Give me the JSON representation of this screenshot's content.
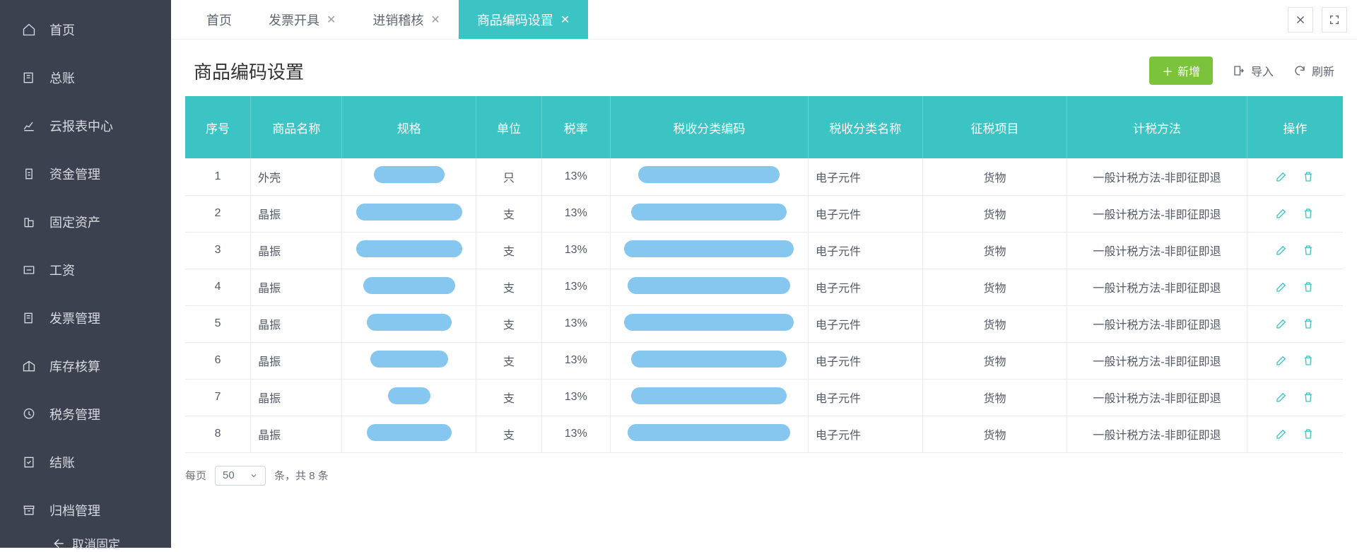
{
  "colors": {
    "sidebar_bg": "#3c4150",
    "sidebar_fg": "#d8dadf",
    "accent": "#3cc4c4",
    "primary_btn": "#7ac33a",
    "redact": "#85c7ee",
    "border": "#e8ebef",
    "text": "#333333"
  },
  "sidebar": {
    "items": [
      {
        "label": "首页",
        "ico": "home"
      },
      {
        "label": "总账",
        "ico": "ledger"
      },
      {
        "label": "云报表中心",
        "ico": "chart"
      },
      {
        "label": "资金管理",
        "ico": "money"
      },
      {
        "label": "固定资产",
        "ico": "building"
      },
      {
        "label": "工资",
        "ico": "salary"
      },
      {
        "label": "发票管理",
        "ico": "invoice"
      },
      {
        "label": "库存核算",
        "ico": "stock"
      },
      {
        "label": "税务管理",
        "ico": "tax"
      },
      {
        "label": "结账",
        "ico": "close-period"
      },
      {
        "label": "归档管理",
        "ico": "archive"
      }
    ],
    "footer": "取消固定"
  },
  "tabs": [
    {
      "label": "首页",
      "closable": false,
      "active": false
    },
    {
      "label": "发票开具",
      "closable": true,
      "active": false
    },
    {
      "label": "进销稽核",
      "closable": true,
      "active": false
    },
    {
      "label": "商品编码设置",
      "closable": true,
      "active": true
    }
  ],
  "page": {
    "title": "商品编码设置",
    "add": "新增",
    "import": "导入",
    "refresh": "刷新"
  },
  "table": {
    "columns": [
      "序号",
      "商品名称",
      "规格",
      "单位",
      "税率",
      "税收分类编码",
      "税收分类名称",
      "征税项目",
      "计税方法",
      "操作"
    ],
    "rows": [
      {
        "seq": "1",
        "name": "外壳",
        "spec_redact_w": 100,
        "unit": "只",
        "rate": "13%",
        "code_redact_w": 200,
        "cls": "电子元件",
        "tax": "货物",
        "method": "一般计税方法-非即征即退"
      },
      {
        "seq": "2",
        "name": "晶振",
        "spec_redact_w": 150,
        "unit": "支",
        "rate": "13%",
        "code_redact_w": 220,
        "cls": "电子元件",
        "tax": "货物",
        "method": "一般计税方法-非即征即退"
      },
      {
        "seq": "3",
        "name": "晶振",
        "spec_redact_w": 150,
        "unit": "支",
        "rate": "13%",
        "code_redact_w": 240,
        "cls": "电子元件",
        "tax": "货物",
        "method": "一般计税方法-非即征即退"
      },
      {
        "seq": "4",
        "name": "晶振",
        "spec_redact_w": 130,
        "unit": "支",
        "rate": "13%",
        "code_redact_w": 230,
        "cls": "电子元件",
        "tax": "货物",
        "method": "一般计税方法-非即征即退"
      },
      {
        "seq": "5",
        "name": "晶振",
        "spec_redact_w": 120,
        "unit": "支",
        "rate": "13%",
        "code_redact_w": 240,
        "cls": "电子元件",
        "tax": "货物",
        "method": "一般计税方法-非即征即退"
      },
      {
        "seq": "6",
        "name": "晶振",
        "spec_redact_w": 110,
        "unit": "支",
        "rate": "13%",
        "code_redact_w": 220,
        "cls": "电子元件",
        "tax": "货物",
        "method": "一般计税方法-非即征即退"
      },
      {
        "seq": "7",
        "name": "晶振",
        "spec_redact_w": 60,
        "unit": "支",
        "rate": "13%",
        "code_redact_w": 220,
        "cls": "电子元件",
        "tax": "货物",
        "method": "一般计税方法-非即征即退"
      },
      {
        "seq": "8",
        "name": "晶振",
        "spec_redact_w": 120,
        "unit": "支",
        "rate": "13%",
        "code_redact_w": 230,
        "cls": "电子元件",
        "tax": "货物",
        "method": "一般计税方法-非即征即退"
      }
    ]
  },
  "pager": {
    "every": "每页",
    "page_size": "50",
    "unit_prefix": "条，共",
    "total": "8",
    "unit_suffix": "条"
  }
}
